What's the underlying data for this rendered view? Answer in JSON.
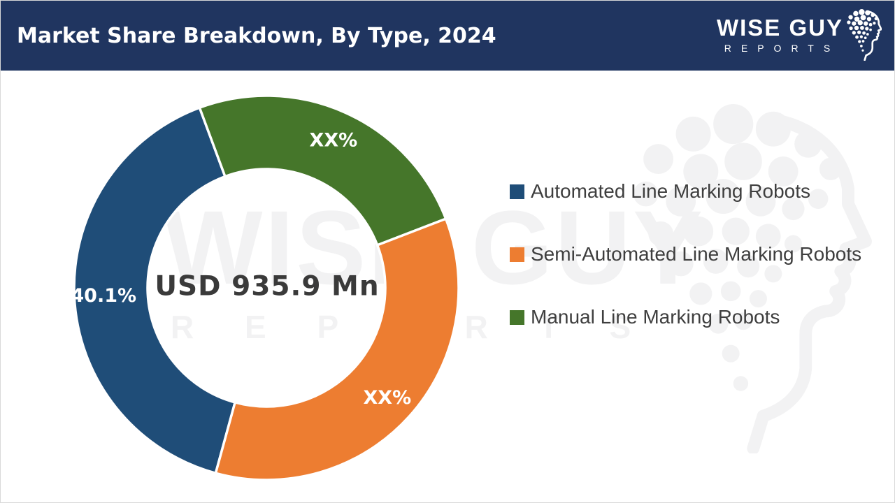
{
  "header": {
    "title": "Market Share Breakdown, By Type, 2024",
    "logo": {
      "line1": "WISE GUY",
      "line2": "REPORTS"
    }
  },
  "watermark": {
    "line1": "WISE GUY",
    "line2": "R E P O R T S"
  },
  "chart_data": {
    "type": "donut",
    "title": "Market Share Breakdown, By Type, 2024",
    "center_label": "USD 935.9 Mn",
    "rotation_deg": 195.3,
    "segments": [
      {
        "name": "Automated Line Marking Robots",
        "value_pct": 40.1,
        "slice_label": "40.1%",
        "color": "#1f4d78"
      },
      {
        "name": "Manual Line Marking Robots",
        "value_pct": 24.8,
        "slice_label": "XX%",
        "color": "#45762a"
      },
      {
        "name": "Semi-Automated Line Marking Robots",
        "value_pct": 35.1,
        "slice_label": "XX%",
        "color": "#ed7d31"
      }
    ],
    "legend_order": [
      0,
      2,
      1
    ],
    "legend_position": "right"
  },
  "colors": {
    "header_bg": "#203560",
    "canvas_bg": "#ffffff",
    "legend_text": "#3e3e3e",
    "center_label_text": "#3a3a3a",
    "watermark": "#f2f2f3"
  }
}
